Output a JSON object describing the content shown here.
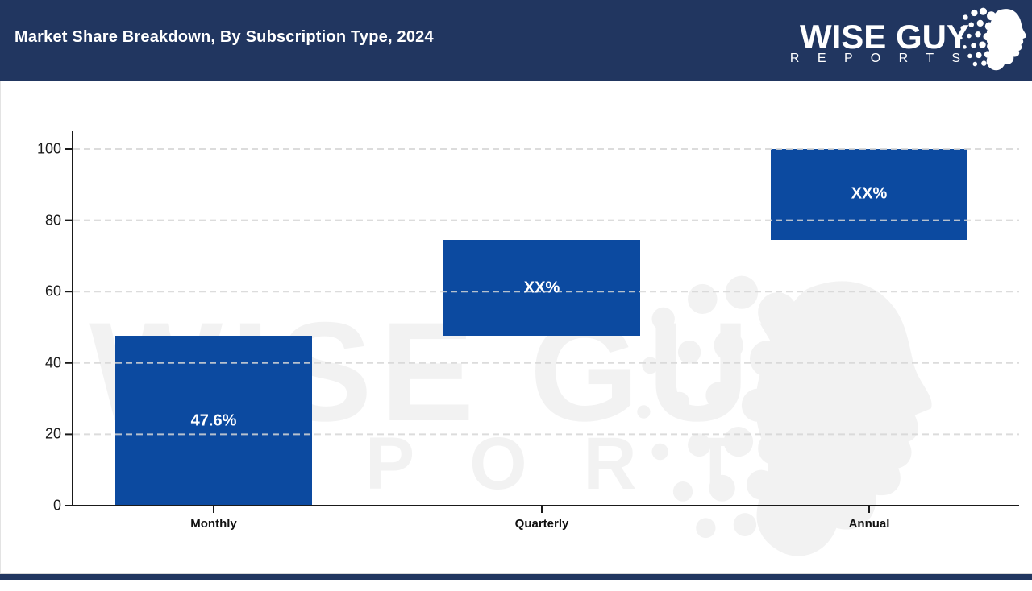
{
  "header": {
    "title": "Market Share Breakdown, By Subscription Type, 2024",
    "background_color": "#213660",
    "logo": {
      "line1": "WISE GUY",
      "line2": "R E P O R T S",
      "face_icon": "dotted-head-profile"
    }
  },
  "watermark": {
    "line1": "WISE GUY",
    "line2": "R E P O R T S",
    "color": "#f2f2f2"
  },
  "chart_data": {
    "type": "bar",
    "subtype": "waterfall",
    "title": "Market Share Breakdown, By Subscription Type, 2024",
    "categories": [
      "Monthly",
      "Quarterly",
      "Annual"
    ],
    "segments": [
      {
        "category": "Monthly",
        "start": 0,
        "end": 47.6,
        "label": "47.6%"
      },
      {
        "category": "Quarterly",
        "start": 47.6,
        "end": 74.5,
        "label": "XX%"
      },
      {
        "category": "Annual",
        "start": 74.5,
        "end": 100,
        "label": "XX%"
      }
    ],
    "yticks": [
      0,
      20,
      40,
      60,
      80,
      100
    ],
    "ylim": [
      0,
      105
    ],
    "xlabel": "",
    "ylabel": "",
    "grid": "horizontal dashed, drawn over bars",
    "legend": "none",
    "bar_color": "#0c4aa0",
    "bar_label_color": "#ffffff",
    "grid_color": "#d6d6d6",
    "axis_color": "#1a1a1a"
  },
  "footer": {
    "strip_color": "#213660"
  }
}
